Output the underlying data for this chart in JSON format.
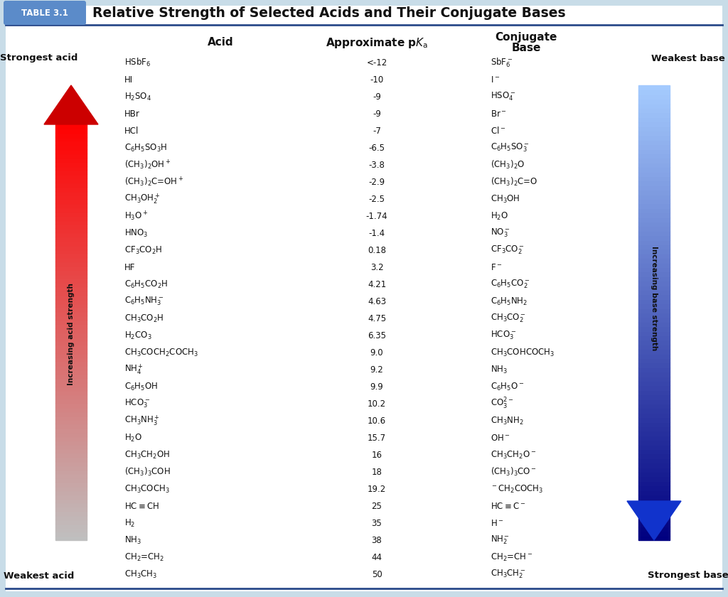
{
  "title": "Relative Strength of Selected Acids and Their Conjugate Bases",
  "table_label": "TABLE 3.1",
  "acids": [
    "HSbF$_6$",
    "HI",
    "H$_2$SO$_4$",
    "HBr",
    "HCl",
    "C$_6$H$_5$SO$_3$H",
    "(CH$_3$)$_2$OH$^+$",
    "(CH$_3$)$_2$C=OH$^+$",
    "CH$_3$OH$_2^+$",
    "H$_3$O$^+$",
    "HNO$_3$",
    "CF$_3$CO$_2$H",
    "HF",
    "C$_6$H$_5$CO$_2$H",
    "C$_6$H$_5$NH$_3^-$",
    "CH$_3$CO$_2$H",
    "H$_2$CO$_3$",
    "CH$_3$COCH$_2$COCH$_3$",
    "NH$_4^+$",
    "C$_6$H$_5$OH",
    "HCO$_3^-$",
    "CH$_3$NH$_3^+$",
    "H$_2$O",
    "CH$_3$CH$_2$OH",
    "(CH$_3$)$_3$COH",
    "CH$_3$COCH$_3$",
    "HC$\\equiv$CH",
    "H$_2$",
    "NH$_3$",
    "CH$_2$=CH$_2$",
    "CH$_3$CH$_3$"
  ],
  "pka_values": [
    "<-12",
    "-10",
    "-9",
    "-9",
    "-7",
    "-6.5",
    "-3.8",
    "-2.9",
    "-2.5",
    "-1.74",
    "-1.4",
    "0.18",
    "3.2",
    "4.21",
    "4.63",
    "4.75",
    "6.35",
    "9.0",
    "9.2",
    "9.9",
    "10.2",
    "10.6",
    "15.7",
    "16",
    "18",
    "19.2",
    "25",
    "35",
    "38",
    "44",
    "50"
  ],
  "bases": [
    "SbF$_6^-$",
    "I$^-$",
    "HSO$_4^-$",
    "Br$^-$",
    "Cl$^-$",
    "C$_6$H$_5$SO$_3^-$",
    "(CH$_3$)$_2$O",
    "(CH$_3$)$_2$C=O",
    "CH$_3$OH",
    "H$_2$O",
    "NO$_3^-$",
    "CF$_3$CO$_2^-$",
    "F$^-$",
    "C$_6$H$_5$CO$_2^-$",
    "C$_6$H$_5$NH$_2$",
    "CH$_3$CO$_2^-$",
    "HCO$_3^-$",
    "CH$_3$COHCOCH$_3$",
    "NH$_3$",
    "C$_6$H$_5$O$^-$",
    "CO$_3^{2-}$",
    "CH$_3$NH$_2$",
    "OH$^-$",
    "CH$_3$CH$_2$O$^-$",
    "(CH$_3$)$_3$CO$^-$",
    "$^-$CH$_2$COCH$_3$",
    "HC$\\equiv$C$^-$",
    "H$^-$",
    "NH$_2^-$",
    "CH$_2$=CH$^-$",
    "CH$_3$CH$_2^-$"
  ],
  "bg_color": "#ffffff",
  "outer_bg": "#c8dce8",
  "text_color": "#111111"
}
